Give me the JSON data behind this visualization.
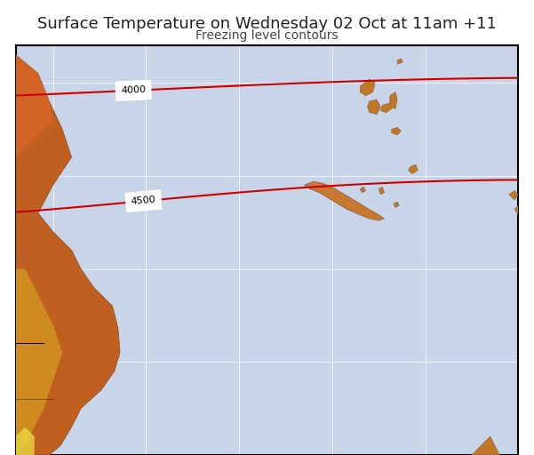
{
  "title": "Surface Temperature on Wednesday 02 Oct at 11am +11",
  "subtitle": "Freezing level contours",
  "title_fontsize": 13,
  "subtitle_fontsize": 10,
  "background_color": "#ffffff",
  "ocean_color": "#c8d4e8",
  "map_border_color": "#000000",
  "contour_color": "#cc0000",
  "contour_label_fontsize": 8,
  "grid_color": "#ffffff",
  "figsize": [
    6.01,
    5.12
  ],
  "dpi": 100,
  "lon_min": 148.0,
  "lon_max": 175.0,
  "lat_min": -35.0,
  "lat_max": -13.0
}
